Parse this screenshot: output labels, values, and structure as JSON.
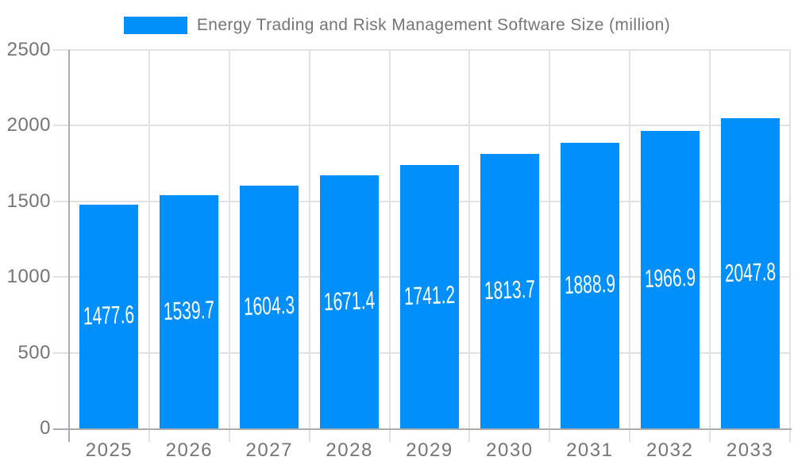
{
  "chart_data": {
    "type": "bar",
    "title": "Energy Trading and Risk Management Software Size (million)",
    "legend_position": "top",
    "categories": [
      "2025",
      "2026",
      "2027",
      "2028",
      "2029",
      "2030",
      "2031",
      "2032",
      "2033"
    ],
    "series": [
      {
        "name": "Energy Trading and Risk Management Software Size (million)",
        "values": [
          1477.6,
          1539.7,
          1604.3,
          1671.4,
          1741.2,
          1813.7,
          1888.9,
          1966.9,
          2047.8
        ]
      }
    ],
    "value_labels": [
      "1477.6",
      "1539.7",
      "1604.3",
      "1671.4",
      "1741.2",
      "1813.7",
      "1888.9",
      "1966.9",
      "2047.8"
    ],
    "xlabel": "",
    "ylabel": "",
    "ylim": [
      0,
      2500
    ],
    "y_ticks": [
      "0",
      "500",
      "1000",
      "1500",
      "2000",
      "2500"
    ],
    "grid": true,
    "colors": {
      "bar": "#008FFB",
      "grid": "#e2e2e2",
      "axis": "#acacac",
      "text": "#757575",
      "value_label": "#ffffff",
      "background": "#ffffff"
    }
  }
}
